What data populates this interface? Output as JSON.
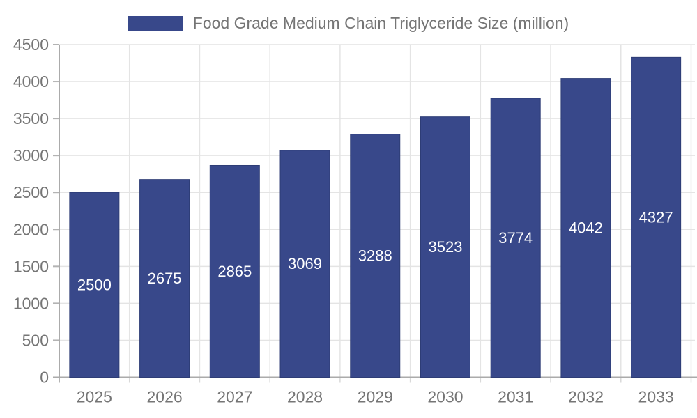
{
  "chart_data": {
    "type": "bar",
    "title": "Food Grade Medium Chain Triglyceride Size (million)",
    "categories": [
      "2025",
      "2026",
      "2027",
      "2028",
      "2029",
      "2030",
      "2031",
      "2032",
      "2033"
    ],
    "values": [
      2500,
      2675,
      2865,
      3069,
      3288,
      3523,
      3774,
      4042,
      4327
    ],
    "xlabel": "",
    "ylabel": "",
    "ylim": [
      0,
      4500
    ],
    "ytick_step": 500,
    "ytick_labels": [
      "0",
      "500",
      "1000",
      "1500",
      "2000",
      "2500",
      "3000",
      "3500",
      "4000",
      "4500"
    ],
    "grid": true,
    "legend_position": "top-center",
    "value_labels_inside_bars": true,
    "colors": {
      "bar": "#38488A",
      "bar_edge": "#2E3D76",
      "value_label": "#FFFFFF",
      "axis_text": "#757575",
      "gridline": "#E4E4E4",
      "spine": "#ABABAB",
      "tick": "#B3B3B3",
      "minor_tick": "#D9D9D9"
    }
  }
}
